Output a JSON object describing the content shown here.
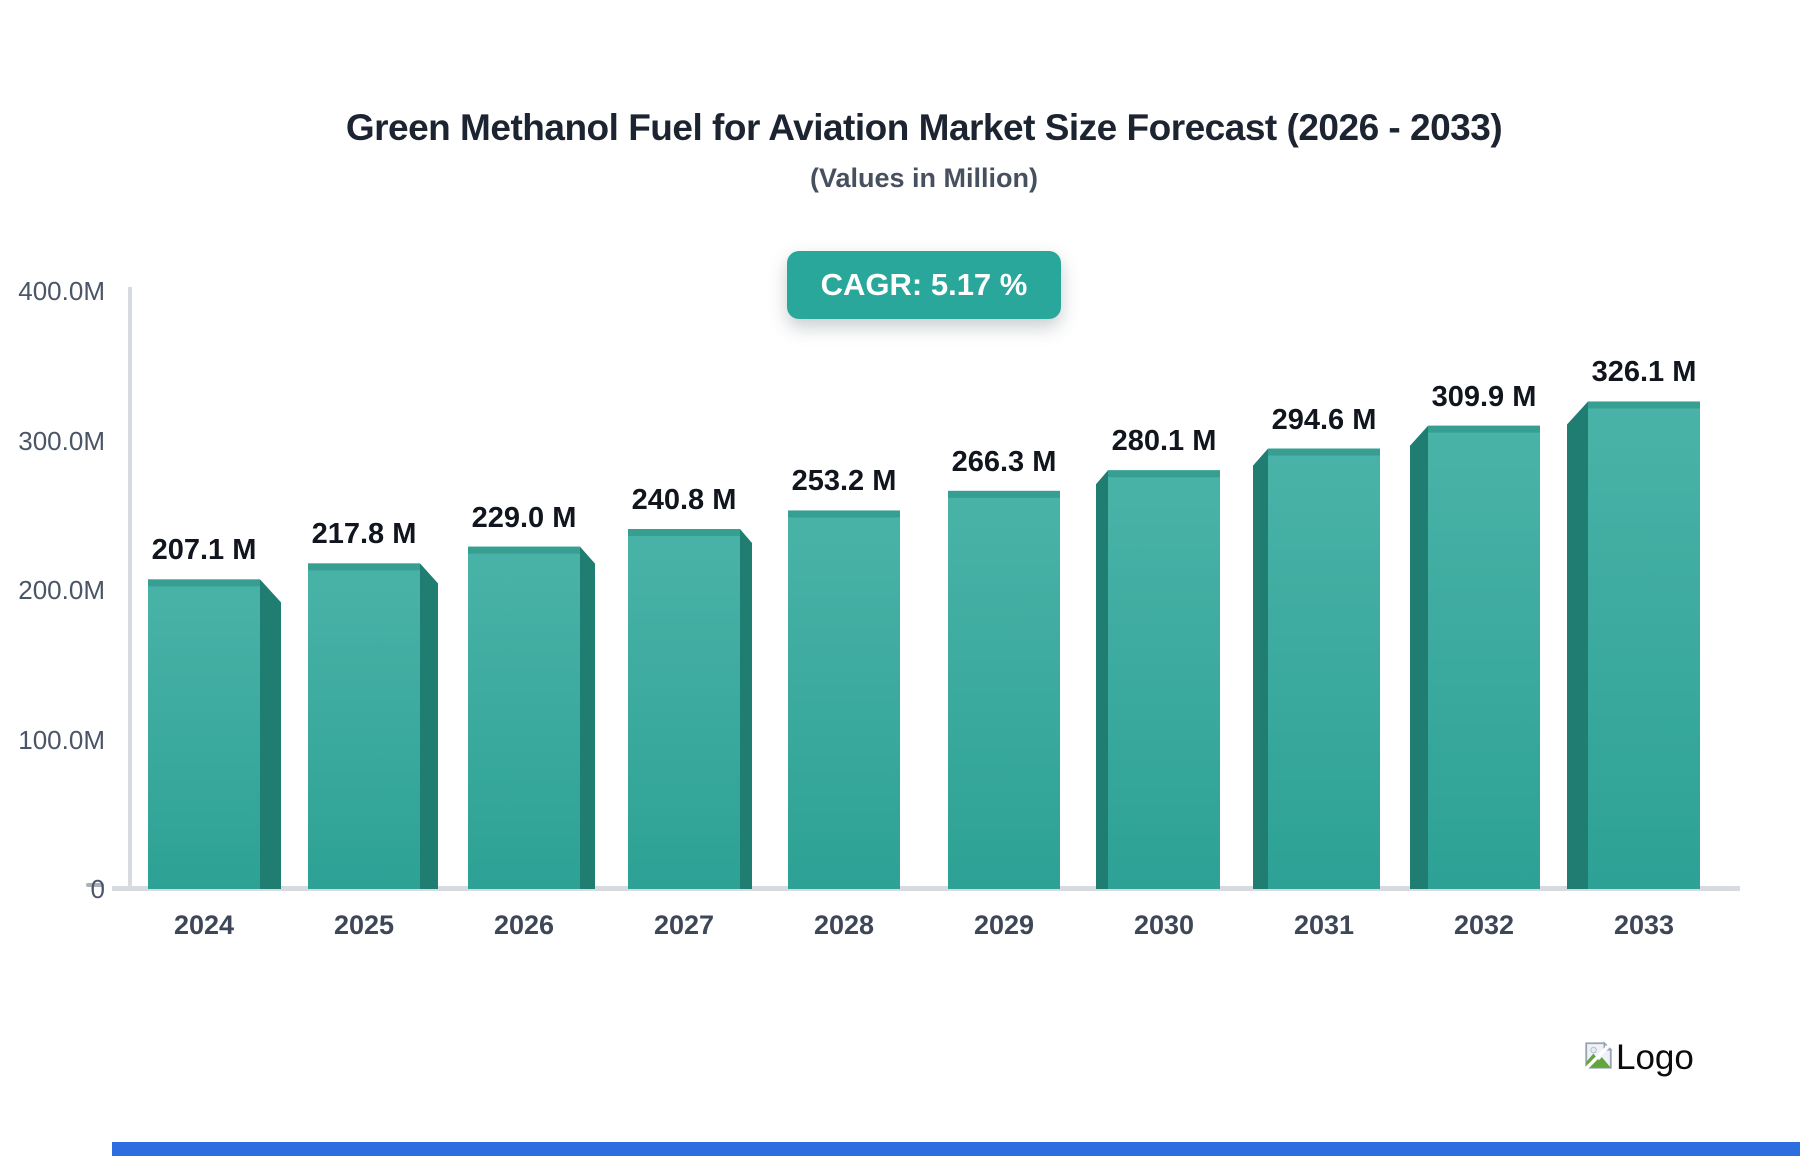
{
  "header": {
    "title": "Green Methanol Fuel for Aviation Market Size Forecast (2026 - 2033)",
    "subtitle": "(Values in Million)",
    "cagr_badge": "CAGR: 5.17 %"
  },
  "footer": {
    "logo_alt": "Logo"
  },
  "colors": {
    "bar_face_top": "#4ab3a8",
    "bar_face_bottom": "#2da195",
    "bar_cap": "#379e92",
    "bar_side": "#1f7d72",
    "badge_background": "#2aa79b",
    "axis_line": "#d7dade",
    "y_label_text": "#4a5568",
    "x_label_text": "#3d4757",
    "value_label_text": "#10151e",
    "bottom_accent": "#2e6de0"
  },
  "chart_data": {
    "type": "bar",
    "title": "Green Methanol Fuel for Aviation Market Size Forecast (2026 - 2033)",
    "subtitle": "(Values in Million)",
    "unit": "Million",
    "cagr": "5.17 %",
    "categories": [
      "2024",
      "2025",
      "2026",
      "2027",
      "2028",
      "2029",
      "2030",
      "2031",
      "2032",
      "2033"
    ],
    "values": [
      207.1,
      217.8,
      229.0,
      240.8,
      253.2,
      266.3,
      280.1,
      294.6,
      309.9,
      326.1
    ],
    "value_labels": [
      "207.1 M",
      "217.8 M",
      "229.0 M",
      "240.8 M",
      "253.2 M",
      "266.3 M",
      "280.1 M",
      "294.6 M",
      "309.9 M",
      "326.1 M"
    ],
    "xlabel": "",
    "ylabel": "",
    "ylim": [
      0,
      400
    ],
    "y_ticks": [
      {
        "label": "400.0M",
        "value": 400
      },
      {
        "label": "300.0M",
        "value": 300
      },
      {
        "label": "200.0M",
        "value": 200
      },
      {
        "label": "100.0M",
        "value": 100
      },
      {
        "label": "0",
        "value": 0
      }
    ],
    "grid": false,
    "legend": "none",
    "style": "3d-teal-bars"
  }
}
